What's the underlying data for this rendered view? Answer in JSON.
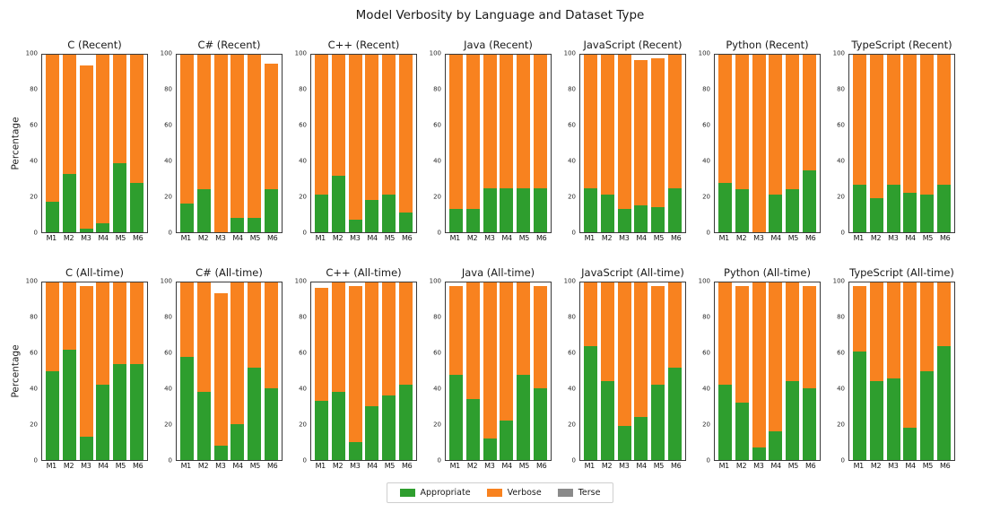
{
  "title": "Model Verbosity by Language and Dataset Type",
  "ylabel": "Percentage",
  "legend": [
    {
      "label": "Appropriate",
      "color": "#2e9e2e"
    },
    {
      "label": "Verbose",
      "color": "#f8821f"
    },
    {
      "label": "Terse",
      "color": "#8a8a8a"
    }
  ],
  "chart_data": {
    "type": "bar",
    "stacked": true,
    "title": "Model Verbosity by Language and Dataset Type",
    "ylabel": "Percentage",
    "ylim": [
      0,
      100
    ],
    "yticks": [
      0,
      20,
      40,
      60,
      80,
      100
    ],
    "categories": [
      "M1",
      "M2",
      "M3",
      "M4",
      "M5",
      "M6"
    ],
    "series_names": [
      "Appropriate",
      "Verbose",
      "Terse"
    ],
    "colors": {
      "Appropriate": "#2e9e2e",
      "Verbose": "#f8821f",
      "Terse": "#8a8a8a"
    },
    "row_labels": [
      "Recent",
      "All-time"
    ],
    "subplots": [
      {
        "title": "C (Recent)",
        "row": 0,
        "appropriate": [
          17,
          33,
          2,
          5,
          39,
          28
        ],
        "verbose": [
          83,
          67,
          92,
          95,
          61,
          72
        ],
        "terse": [
          0,
          0,
          0,
          0,
          0,
          0
        ]
      },
      {
        "title": "C# (Recent)",
        "row": 0,
        "appropriate": [
          16,
          24,
          0,
          8,
          8,
          24
        ],
        "verbose": [
          84,
          76,
          100,
          92,
          92,
          71
        ],
        "terse": [
          0,
          0,
          0,
          0,
          0,
          0
        ]
      },
      {
        "title": "C++ (Recent)",
        "row": 0,
        "appropriate": [
          21,
          32,
          7,
          18,
          21,
          11
        ],
        "verbose": [
          79,
          68,
          93,
          82,
          79,
          89
        ],
        "terse": [
          0,
          0,
          0,
          0,
          0,
          0
        ]
      },
      {
        "title": "Java (Recent)",
        "row": 0,
        "appropriate": [
          13,
          13,
          25,
          25,
          25,
          25
        ],
        "verbose": [
          87,
          87,
          75,
          75,
          75,
          75
        ],
        "terse": [
          0,
          0,
          0,
          0,
          0,
          0
        ]
      },
      {
        "title": "JavaScript (Recent)",
        "row": 0,
        "appropriate": [
          25,
          21,
          13,
          15,
          14,
          25
        ],
        "verbose": [
          75,
          79,
          87,
          82,
          84,
          75
        ],
        "terse": [
          0,
          0,
          0,
          0,
          0,
          0
        ]
      },
      {
        "title": "Python (Recent)",
        "row": 0,
        "appropriate": [
          28,
          24,
          0,
          21,
          24,
          35
        ],
        "verbose": [
          72,
          76,
          100,
          79,
          76,
          65
        ],
        "terse": [
          0,
          0,
          0,
          0,
          0,
          0
        ]
      },
      {
        "title": "TypeScript (Recent)",
        "row": 0,
        "appropriate": [
          27,
          19,
          27,
          22,
          21,
          27
        ],
        "verbose": [
          73,
          81,
          73,
          78,
          79,
          73
        ],
        "terse": [
          0,
          0,
          0,
          0,
          0,
          0
        ]
      },
      {
        "title": "C (All-time)",
        "row": 1,
        "appropriate": [
          50,
          62,
          13,
          42,
          54,
          54
        ],
        "verbose": [
          50,
          38,
          85,
          58,
          46,
          46
        ],
        "terse": [
          0,
          0,
          0,
          0,
          0,
          0
        ]
      },
      {
        "title": "C# (All-time)",
        "row": 1,
        "appropriate": [
          58,
          38,
          8,
          20,
          52,
          40
        ],
        "verbose": [
          42,
          62,
          86,
          80,
          48,
          60
        ],
        "terse": [
          0,
          0,
          0,
          0,
          0,
          0
        ]
      },
      {
        "title": "C++ (All-time)",
        "row": 1,
        "appropriate": [
          33,
          38,
          10,
          30,
          36,
          42
        ],
        "verbose": [
          64,
          62,
          88,
          70,
          64,
          58
        ],
        "terse": [
          0,
          0,
          0,
          0,
          0,
          0
        ]
      },
      {
        "title": "Java (All-time)",
        "row": 1,
        "appropriate": [
          48,
          34,
          12,
          22,
          48,
          40
        ],
        "verbose": [
          50,
          66,
          88,
          78,
          52,
          58
        ],
        "terse": [
          0,
          0,
          0,
          0,
          0,
          0
        ]
      },
      {
        "title": "JavaScript (All-time)",
        "row": 1,
        "appropriate": [
          64,
          44,
          19,
          24,
          42,
          52
        ],
        "verbose": [
          36,
          56,
          81,
          76,
          56,
          48
        ],
        "terse": [
          0,
          0,
          0,
          0,
          0,
          0
        ]
      },
      {
        "title": "Python (All-time)",
        "row": 1,
        "appropriate": [
          42,
          32,
          7,
          16,
          44,
          40
        ],
        "verbose": [
          58,
          66,
          93,
          84,
          56,
          58
        ],
        "terse": [
          0,
          0,
          0,
          0,
          0,
          0
        ]
      },
      {
        "title": "TypeScript (All-time)",
        "row": 1,
        "appropriate": [
          61,
          44,
          46,
          18,
          50,
          64
        ],
        "verbose": [
          37,
          56,
          54,
          82,
          50,
          36
        ],
        "terse": [
          0,
          0,
          0,
          0,
          0,
          0
        ]
      }
    ]
  }
}
